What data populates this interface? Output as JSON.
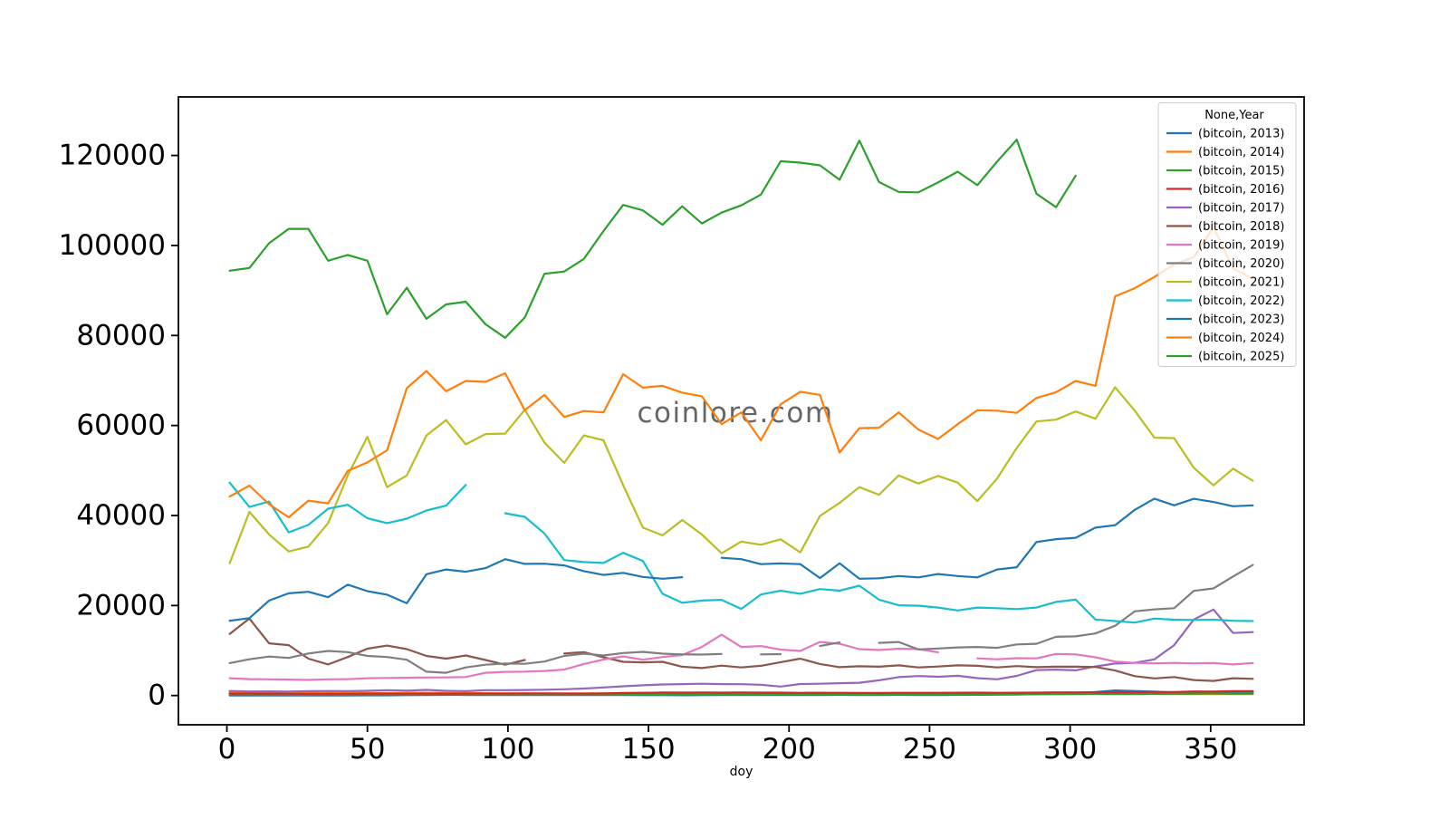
{
  "chart_data": {
    "type": "line",
    "title": "",
    "xlabel": "doy",
    "ylabel": "",
    "watermark": "coinlore.com",
    "watermark_color": "#adadad",
    "xlim": [
      -17.25,
      383.25
    ],
    "ylim": [
      -6500,
      133000
    ],
    "x_ticks": [
      0,
      50,
      100,
      150,
      200,
      250,
      300,
      350
    ],
    "y_ticks": [
      0,
      20000,
      40000,
      60000,
      80000,
      100000,
      120000
    ],
    "grid": false,
    "legend": {
      "title": "None,Year",
      "position": "upper right"
    },
    "x_start_doy": 1,
    "x_step_days": 7,
    "series": [
      {
        "name": "(bitcoin, 2013)",
        "year": 2013,
        "color": "#1f77b4",
        "values": [
          13,
          15,
          17,
          19,
          20,
          25,
          31,
          34,
          47,
          77,
          93,
          140,
          117,
          112,
          120,
          122,
          128,
          111,
          107,
          100,
          97,
          90,
          76,
          68,
          88,
          97,
          93,
          102,
          113,
          120,
          128,
          135,
          124,
          128,
          133,
          123,
          125,
          133,
          155,
          183,
          203,
          330,
          430,
          610,
          785,
          1130,
          1000,
          870,
          690,
          640,
          560,
          660,
          730
        ]
      },
      {
        "name": "(bitcoin, 2014)",
        "year": 2014,
        "color": "#ff7f0e",
        "values": [
          770,
          810,
          830,
          800,
          690,
          620,
          630,
          580,
          550,
          630,
          620,
          590,
          560,
          500,
          480,
          450,
          430,
          445,
          440,
          450,
          580,
          630,
          600,
          655,
          600,
          590,
          620,
          625,
          580,
          590,
          585,
          500,
          505,
          480,
          470,
          460,
          410,
          390,
          385,
          360,
          330,
          350,
          375,
          355,
          375,
          355,
          375,
          370,
          350,
          330,
          320,
          315,
          320
        ]
      },
      {
        "name": "(bitcoin, 2015)",
        "year": 2015,
        "color": "#2ca02c",
        "values": [
          315,
          290,
          210,
          225,
          215,
          240,
          220,
          235,
          255,
          270,
          285,
          295,
          250,
          245,
          225,
          235,
          225,
          235,
          240,
          235,
          240,
          230,
          230,
          245,
          250,
          255,
          260,
          265,
          285,
          280,
          270,
          260,
          230,
          230,
          235,
          230,
          240,
          245,
          245,
          260,
          265,
          275,
          290,
          320,
          370,
          330,
          350,
          360,
          390,
          415,
          455,
          430,
          430
        ]
      },
      {
        "name": "(bitcoin, 2016)",
        "year": 2016,
        "color": "#d62728",
        "values": [
          430,
          450,
          430,
          410,
          380,
          375,
          390,
          420,
          415,
          410,
          415,
          415,
          420,
          445,
          450,
          455,
          460,
          445,
          450,
          455,
          540,
          580,
          670,
          640,
          660,
          640,
          680,
          655,
          655,
          585,
          605,
          605,
          590,
          575,
          610,
          610,
          615,
          630,
          640,
          610,
          635,
          640,
          705,
          700,
          730,
          745,
          755,
          770,
          790,
          905,
          890,
          960,
          960
        ]
      },
      {
        "name": "(bitcoin, 2017)",
        "year": 2017,
        "color": "#9467bd",
        "values": [
          1000,
          900,
          920,
          890,
          970,
          1010,
          990,
          1050,
          1190,
          1080,
          1250,
          1040,
          965,
          1190,
          1180,
          1230,
          1290,
          1390,
          1560,
          1800,
          2050,
          2270,
          2450,
          2540,
          2620,
          2540,
          2520,
          2400,
          1990,
          2560,
          2620,
          2730,
          2840,
          3380,
          4090,
          4330,
          4160,
          4390,
          3870,
          3610,
          4380,
          5640,
          5750,
          5600,
          6470,
          7100,
          7260,
          8040,
          11200,
          16900,
          19100,
          13900,
          14100
        ]
      },
      {
        "name": "(bitcoin, 2018)",
        "year": 2018,
        "color": "#8c564b",
        "values": [
          13700,
          17100,
          11600,
          11200,
          8200,
          6900,
          8550,
          10400,
          11100,
          10300,
          8800,
          8200,
          8900,
          7900,
          6850,
          7900,
          null,
          9350,
          9650,
          8500,
          7500,
          7360,
          7500,
          6400,
          6100,
          6650,
          6250,
          6600,
          7400,
          8200,
          7000,
          6300,
          6500,
          6400,
          6700,
          6250,
          6450,
          6700,
          6600,
          6250,
          6550,
          6300,
          6400,
          6400,
          6350,
          5550,
          4300,
          3800,
          4100,
          3450,
          3250,
          3850,
          3700
        ]
      },
      {
        "name": "(bitcoin, 2019)",
        "year": 2019,
        "color": "#e377c2",
        "values": [
          3850,
          3650,
          3600,
          3550,
          3460,
          3600,
          3620,
          3850,
          3900,
          3940,
          4000,
          4030,
          4100,
          5050,
          5250,
          5300,
          5450,
          5750,
          7000,
          8000,
          8700,
          7950,
          8550,
          9000,
          10800,
          13500,
          10800,
          11000,
          10200,
          9900,
          11900,
          11500,
          10300,
          10100,
          10400,
          10300,
          9600,
          null,
          8250,
          8050,
          8300,
          8250,
          9250,
          9150,
          8500,
          7550,
          7250,
          7150,
          7250,
          7150,
          7200,
          6900,
          7200
        ]
      },
      {
        "name": "(bitcoin, 2020)",
        "year": 2020,
        "color": "#7f7f7f",
        "values": [
          7200,
          8050,
          8650,
          8350,
          9350,
          9900,
          9650,
          8800,
          8550,
          7950,
          5300,
          5050,
          6250,
          6850,
          7100,
          7050,
          7550,
          8800,
          9300,
          8900,
          9450,
          9700,
          9300,
          9150,
          9100,
          9250,
          null,
          9150,
          9200,
          null,
          11000,
          11800,
          null,
          11700,
          11900,
          10250,
          10450,
          10700,
          10800,
          10600,
          11350,
          11500,
          13050,
          13150,
          13800,
          15500,
          18700,
          19150,
          19400,
          23250,
          23800,
          26450,
          29000
        ]
      },
      {
        "name": "(bitcoin, 2021)",
        "year": 2021,
        "color": "#bcbd22",
        "values": [
          29400,
          40800,
          35800,
          32000,
          33100,
          38300,
          48900,
          57500,
          46300,
          48900,
          57800,
          61200,
          55800,
          58100,
          58200,
          63500,
          56200,
          51700,
          57800,
          56700,
          46750,
          37300,
          35600,
          39000,
          35800,
          31600,
          34200,
          33500,
          34700,
          31800,
          39900,
          42800,
          46300,
          44600,
          48900,
          47100,
          48800,
          47300,
          43200,
          48200,
          55000,
          60900,
          61300,
          63100,
          61500,
          68500,
          63300,
          57300,
          57200,
          50600,
          46700,
          50400,
          47700
        ]
      },
      {
        "name": "(bitcoin, 2022)",
        "year": 2022,
        "color": "#17becf",
        "values": [
          47300,
          41900,
          43100,
          36250,
          37900,
          41500,
          42400,
          39400,
          38300,
          39300,
          41100,
          42200,
          46800,
          null,
          40500,
          39700,
          36000,
          30100,
          29650,
          29450,
          31700,
          29900,
          22600,
          20600,
          21100,
          21250,
          19250,
          22450,
          23300,
          22600,
          23650,
          23300,
          24400,
          21300,
          20050,
          19950,
          19550,
          18900,
          19550,
          19400,
          19200,
          19550,
          20800,
          21300,
          16900,
          16550,
          16200,
          17100,
          16850,
          16800,
          16850,
          16600,
          16550
        ]
      },
      {
        "name": "(bitcoin, 2023)",
        "year": 2023,
        "color": "#1f77b4",
        "values": [
          16600,
          17200,
          21100,
          22700,
          23050,
          21850,
          24650,
          23200,
          22400,
          20500,
          26950,
          28000,
          27500,
          28300,
          30300,
          29250,
          29300,
          28900,
          27650,
          26800,
          27250,
          26350,
          25950,
          26300,
          null,
          30600,
          30300,
          29200,
          29350,
          29200,
          26100,
          29400,
          25950,
          26050,
          26550,
          26250,
          27000,
          26550,
          26250,
          28000,
          28500,
          34100,
          34750,
          35050,
          37300,
          37850,
          41250,
          43750,
          42250,
          43700,
          43000,
          42050,
          42250
        ]
      },
      {
        "name": "(bitcoin, 2024)",
        "year": 2024,
        "color": "#ff7f0e",
        "values": [
          44200,
          46650,
          42500,
          39600,
          43300,
          42700,
          49900,
          51800,
          54500,
          68300,
          72100,
          67600,
          69900,
          69700,
          71600,
          63400,
          66800,
          61900,
          63200,
          62900,
          71400,
          68400,
          68800,
          67300,
          66500,
          60300,
          62900,
          56700,
          64700,
          67500,
          66800,
          54000,
          59400,
          59500,
          62900,
          59100,
          57000,
          60300,
          63400,
          63300,
          62800,
          66100,
          67400,
          69900,
          68800,
          88700,
          90500,
          93000,
          95800,
          97400,
          104100,
          94900,
          92600
        ]
      },
      {
        "name": "(bitcoin, 2025)",
        "year": 2025,
        "color": "#2ca02c",
        "values": [
          94400,
          95000,
          100500,
          103700,
          103700,
          96600,
          97900,
          96600,
          84700,
          90600,
          83700,
          86900,
          87500,
          82500,
          79500,
          84000,
          93700,
          94200,
          97000,
          103200,
          109000,
          107800,
          104600,
          108700,
          104900,
          107300,
          108900,
          111300,
          118700,
          118400,
          117800,
          114600,
          123300,
          114100,
          111900,
          111800,
          114000,
          116400,
          113400,
          118600,
          123500,
          111500,
          108500,
          115500
        ]
      }
    ]
  }
}
